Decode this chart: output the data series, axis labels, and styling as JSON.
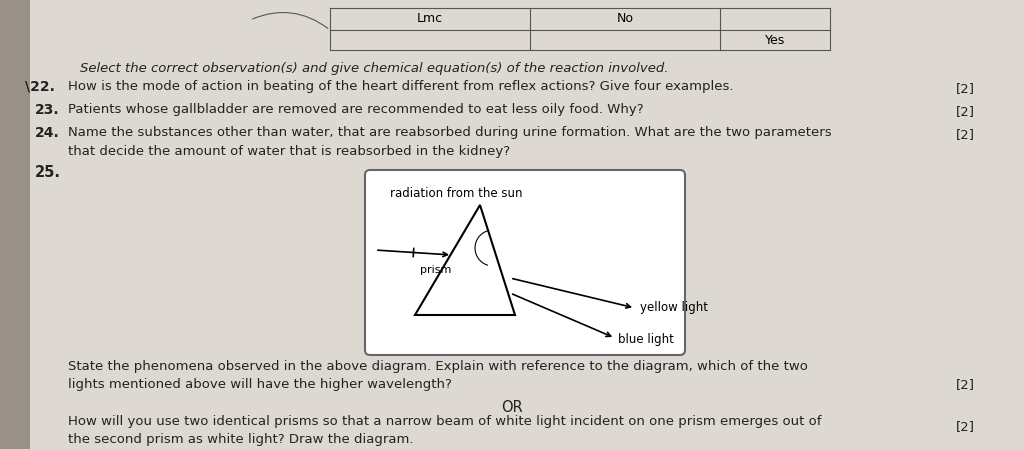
{
  "bg_color": "#b8b0a8",
  "paper_color": "#ddd9d2",
  "table_header": [
    "Lmc",
    "No",
    "Yes"
  ],
  "q21_text": "Select the correct observation(s) and give chemical equation(s) of the reaction involved.",
  "q22_label": "22.",
  "q22_text": "How is the mode of action in beating of the heart different from reflex actions? Give four examples.",
  "q23_label": "23.",
  "q23_text": "Patients whose gallbladder are removed are recommended to eat less oily food. Why?",
  "q24_label": "24.",
  "q24_text": "Name the substances other than water, that are reabsorbed during urine formation. What are the two parameters",
  "q24_text2": "that decide the amount of water that is reabsorbed in the kidney?",
  "q25_label": "25.",
  "marks_22": "[2]",
  "marks_23": "[2]",
  "marks_24": "[2]",
  "marks_25": "[2]",
  "diagram_label_radiation": "radiation from the sun",
  "diagram_label_prism": "prism",
  "diagram_label_yellow": "yellow light",
  "diagram_label_blue": "blue light",
  "state_text1": "State the phenomena observed in the above diagram. Explain with reference to the diagram, which of the two",
  "state_text2": "lights mentioned above will have the higher wavelength?",
  "state_marks": "[2]",
  "or_text": "OR",
  "how_text": "How will you use two identical prisms so that a narrow beam of white light incident on one prism emerges out of",
  "how_marks": "[2]",
  "how_text2": "the second prism as white light? Draw the diagram."
}
